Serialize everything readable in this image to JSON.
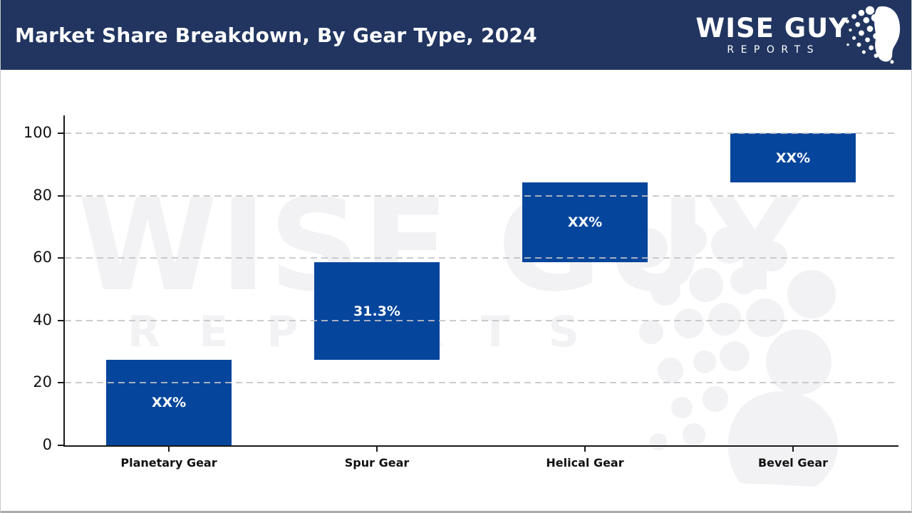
{
  "header": {
    "title": "Market Share Breakdown, By Gear Type, 2024",
    "logo": {
      "wordmark": "WISE GUY",
      "reports": "REPORTS"
    }
  },
  "watermark": {
    "wordmark": "WISE GUY",
    "reports": "REPORTS"
  },
  "colors": {
    "header_bg": "#213560",
    "bar": "#05459c",
    "bar_label": "#ffffff",
    "grid": "#d9d9d9",
    "axis": "#1a1a1a",
    "watermark": "#f2f2f4"
  },
  "chart_data": {
    "type": "bar",
    "subtype": "waterfall-floating-bars",
    "title": "Market Share Breakdown, By Gear Type, 2024",
    "categories": [
      "Planetary Gear",
      "Spur Gear",
      "Helical Gear",
      "Bevel Gear"
    ],
    "series": [
      {
        "name": "Market share (%)",
        "segments": [
          {
            "category": "Planetary Gear",
            "start": 0,
            "end": 27.3,
            "label": "XX%"
          },
          {
            "category": "Spur Gear",
            "start": 27.3,
            "end": 58.6,
            "label": "31.3%"
          },
          {
            "category": "Helical Gear",
            "start": 58.6,
            "end": 84.2,
            "label": "XX%"
          },
          {
            "category": "Bevel Gear",
            "start": 84.2,
            "end": 100,
            "label": "XX%"
          }
        ]
      }
    ],
    "xlabel": "",
    "ylabel": "",
    "ylim": [
      0,
      105
    ],
    "yticks": [
      0,
      20,
      40,
      60,
      80,
      100
    ],
    "grid": "horizontal-dashed",
    "legend": "none"
  }
}
